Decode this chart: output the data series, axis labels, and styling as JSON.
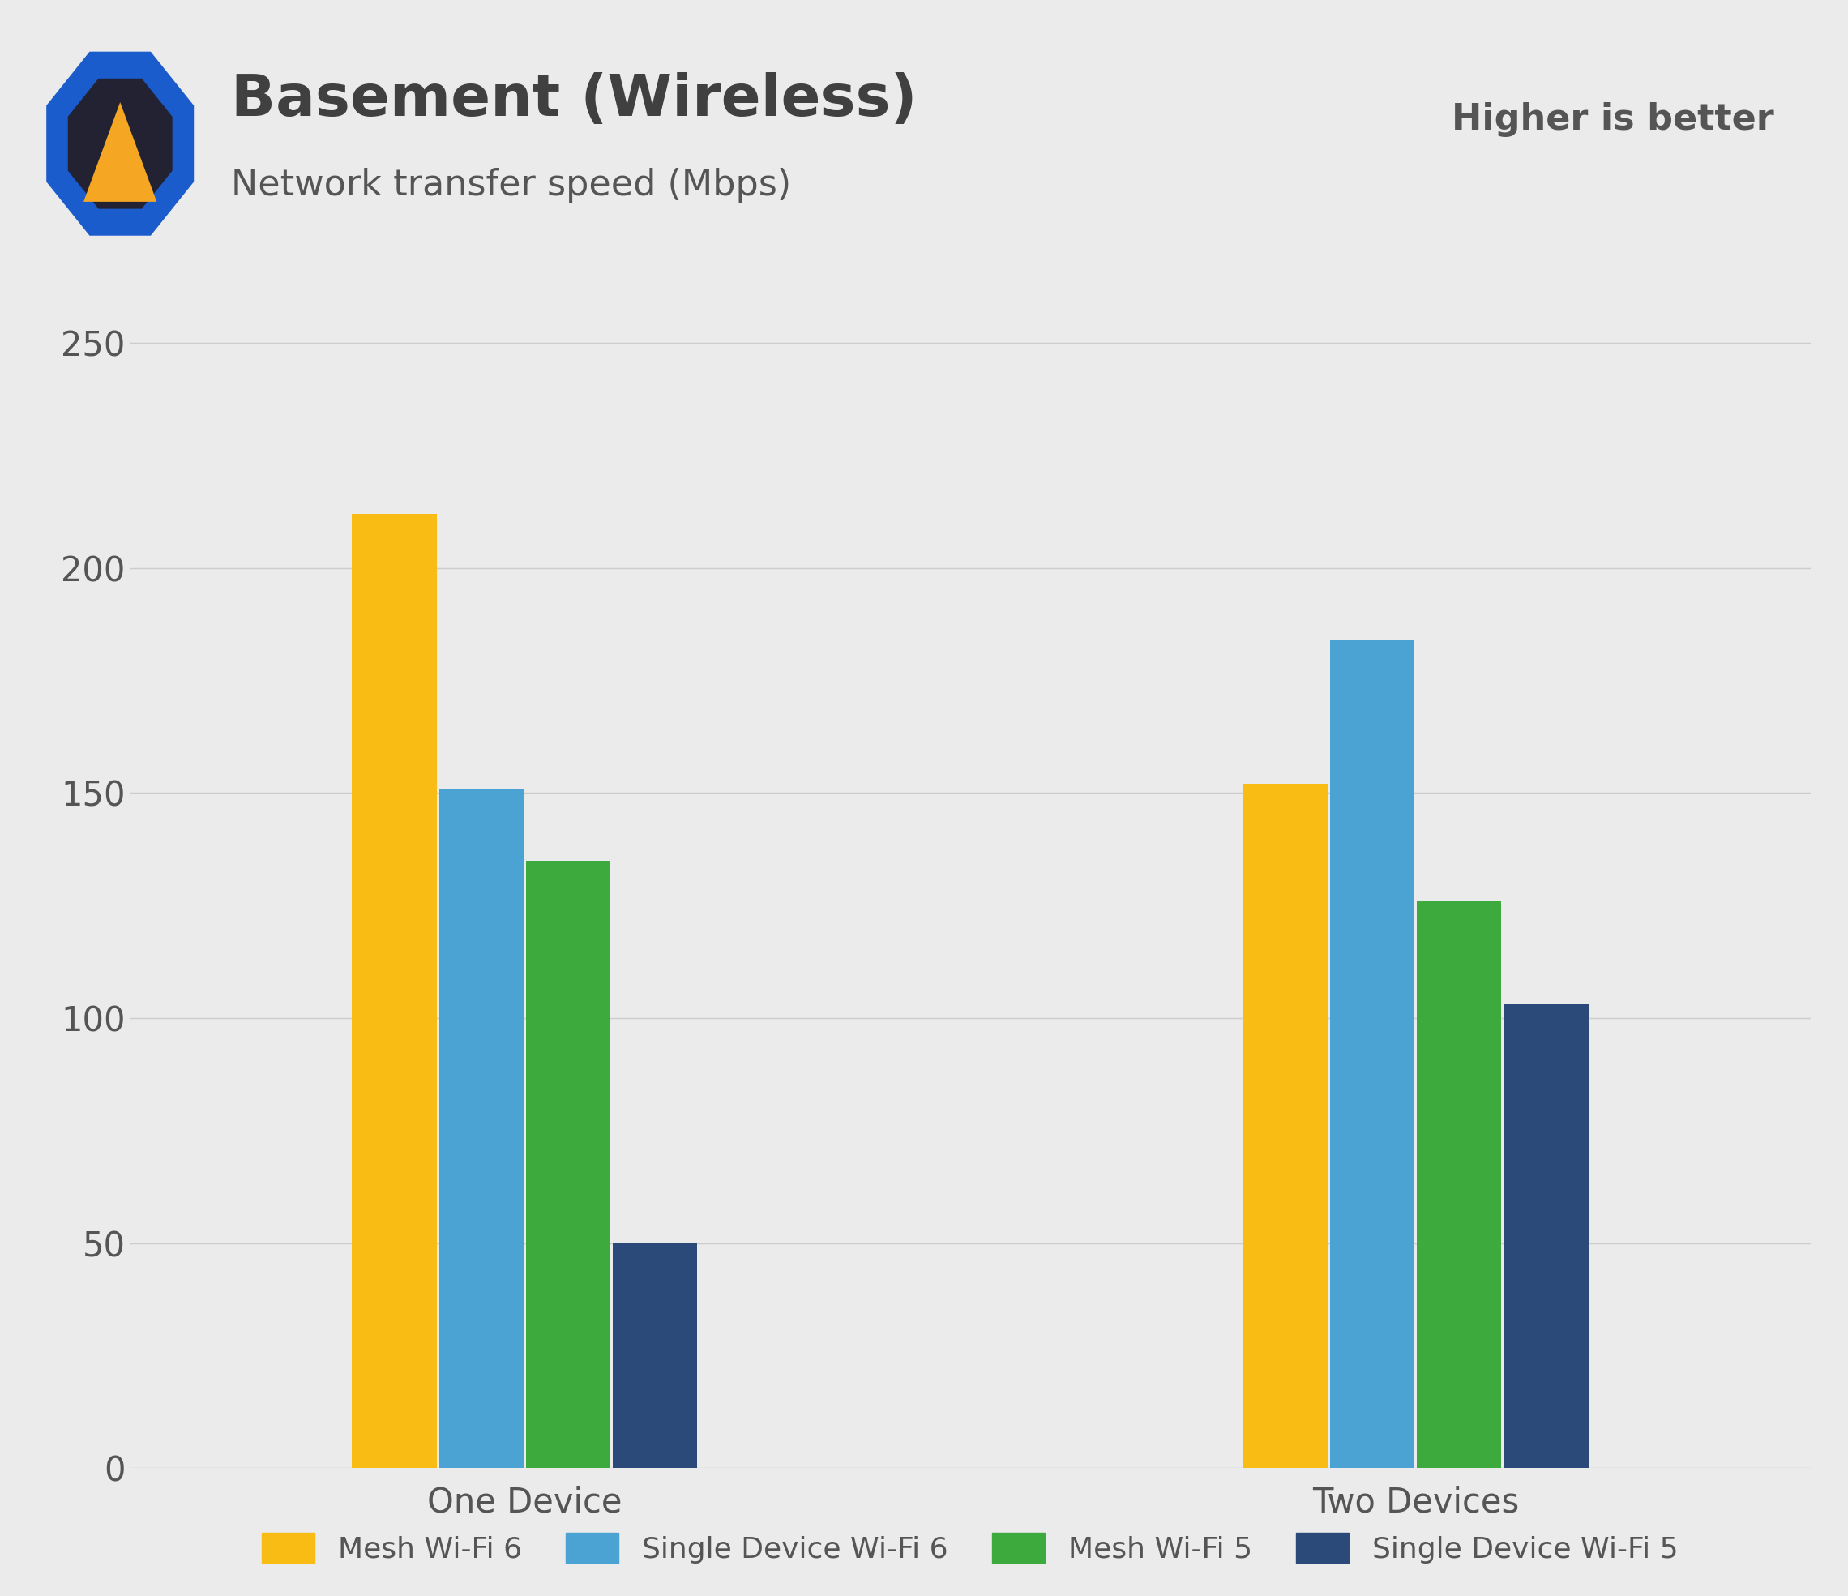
{
  "title": "Basement (Wireless)",
  "subtitle": "Network transfer speed (Mbps)",
  "higher_is_better": "Higher is better",
  "categories": [
    "One Device",
    "Two Devices"
  ],
  "series": [
    {
      "label": "Mesh Wi-Fi 6",
      "color": "#F9BC15",
      "values": [
        212,
        152
      ]
    },
    {
      "label": "Single Device Wi-Fi 6",
      "color": "#4BA3D3",
      "values": [
        151,
        184
      ]
    },
    {
      "label": "Mesh Wi-Fi 5",
      "color": "#3DAA3D",
      "values": [
        135,
        126
      ]
    },
    {
      "label": "Single Device Wi-Fi 5",
      "color": "#2B4A7A",
      "values": [
        50,
        103
      ]
    }
  ],
  "ylim": [
    0,
    270
  ],
  "yticks": [
    0,
    50,
    100,
    150,
    200,
    250
  ],
  "header_background": "#FFFFFF",
  "chart_background": "#EBEBEB",
  "outer_background": "#EBEBEB",
  "title_color": "#404040",
  "subtitle_color": "#555555",
  "higher_color": "#555555",
  "tick_label_color": "#555555",
  "grid_color": "#CCCCCC",
  "title_fontsize": 52,
  "subtitle_fontsize": 32,
  "higher_fontsize": 32,
  "tick_fontsize": 30,
  "legend_fontsize": 26,
  "xtick_fontsize": 30,
  "bar_width": 0.19,
  "bar_gap": 0.005
}
